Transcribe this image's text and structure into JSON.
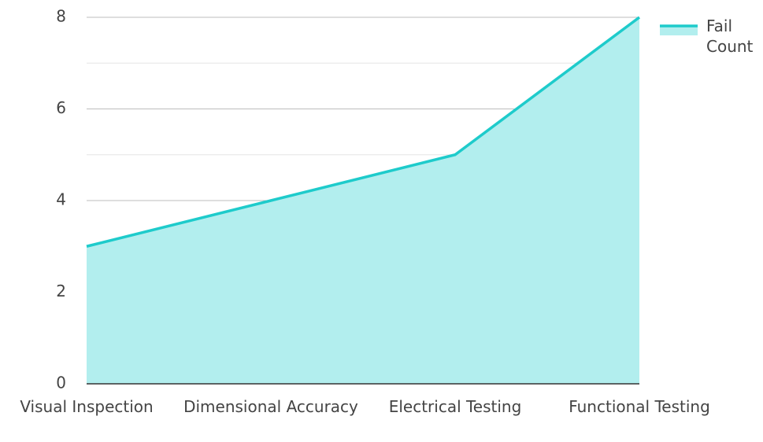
{
  "chart_data": {
    "type": "area",
    "categories": [
      "Visual Inspection",
      "Dimensional Accuracy",
      "Electrical Testing",
      "Functional Testing"
    ],
    "series": [
      {
        "name": "Fail Count",
        "color": "#1ecbcb",
        "fill": "#b2eeee",
        "values": [
          3,
          4,
          5,
          8
        ]
      }
    ],
    "ylim": [
      0,
      8
    ],
    "yticks": [
      0,
      2,
      4,
      6,
      8
    ],
    "minor_yticks": [
      1,
      3,
      5,
      7
    ],
    "grid": true,
    "legend": "top-right"
  }
}
